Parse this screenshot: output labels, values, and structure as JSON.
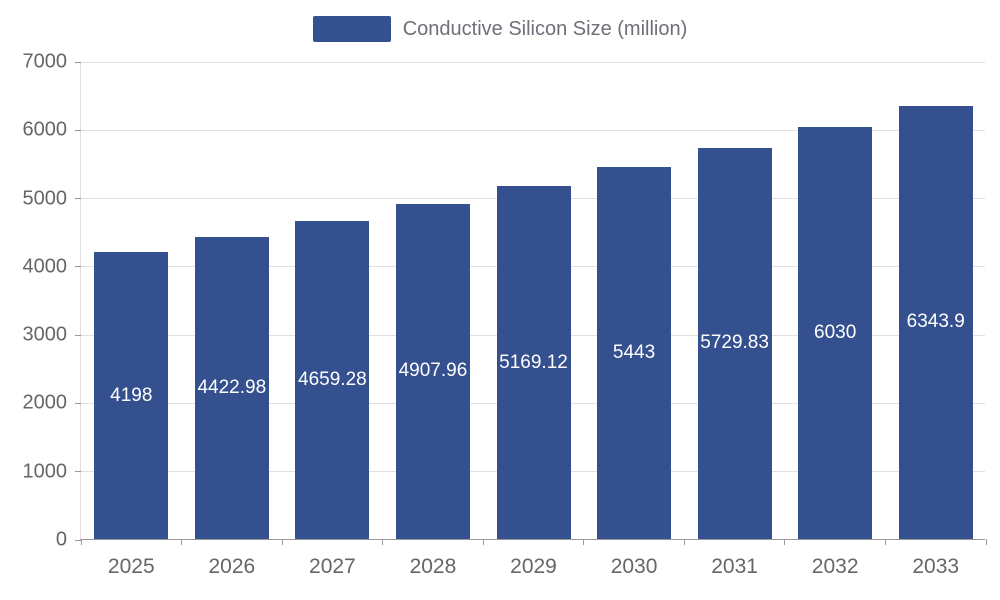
{
  "chart_data": {
    "type": "bar",
    "title": "",
    "legend": "Conductive Silicon Size (million)",
    "categories": [
      "2025",
      "2026",
      "2027",
      "2028",
      "2029",
      "2030",
      "2031",
      "2032",
      "2033"
    ],
    "values": [
      4198,
      4422.98,
      4659.28,
      4907.96,
      5169.12,
      5443,
      5729.83,
      6030,
      6343.9
    ],
    "value_labels": [
      "4198",
      "4422.98",
      "4659.28",
      "4907.96",
      "5169.12",
      "5443",
      "5729.83",
      "6030",
      "6343.9"
    ],
    "xlabel": "",
    "ylabel": "",
    "ylim": [
      0,
      7000
    ],
    "y_ticks": [
      0,
      1000,
      2000,
      3000,
      4000,
      5000,
      6000,
      7000
    ],
    "grid": true,
    "legend_position": "top",
    "bar_color": "#35508F",
    "value_label_color": "#FFFFFF",
    "axis_text_color": "#666666",
    "legend_text_color": "#6E7079",
    "grid_color": "#E0E0E0",
    "axis_line_color": "#999999"
  }
}
